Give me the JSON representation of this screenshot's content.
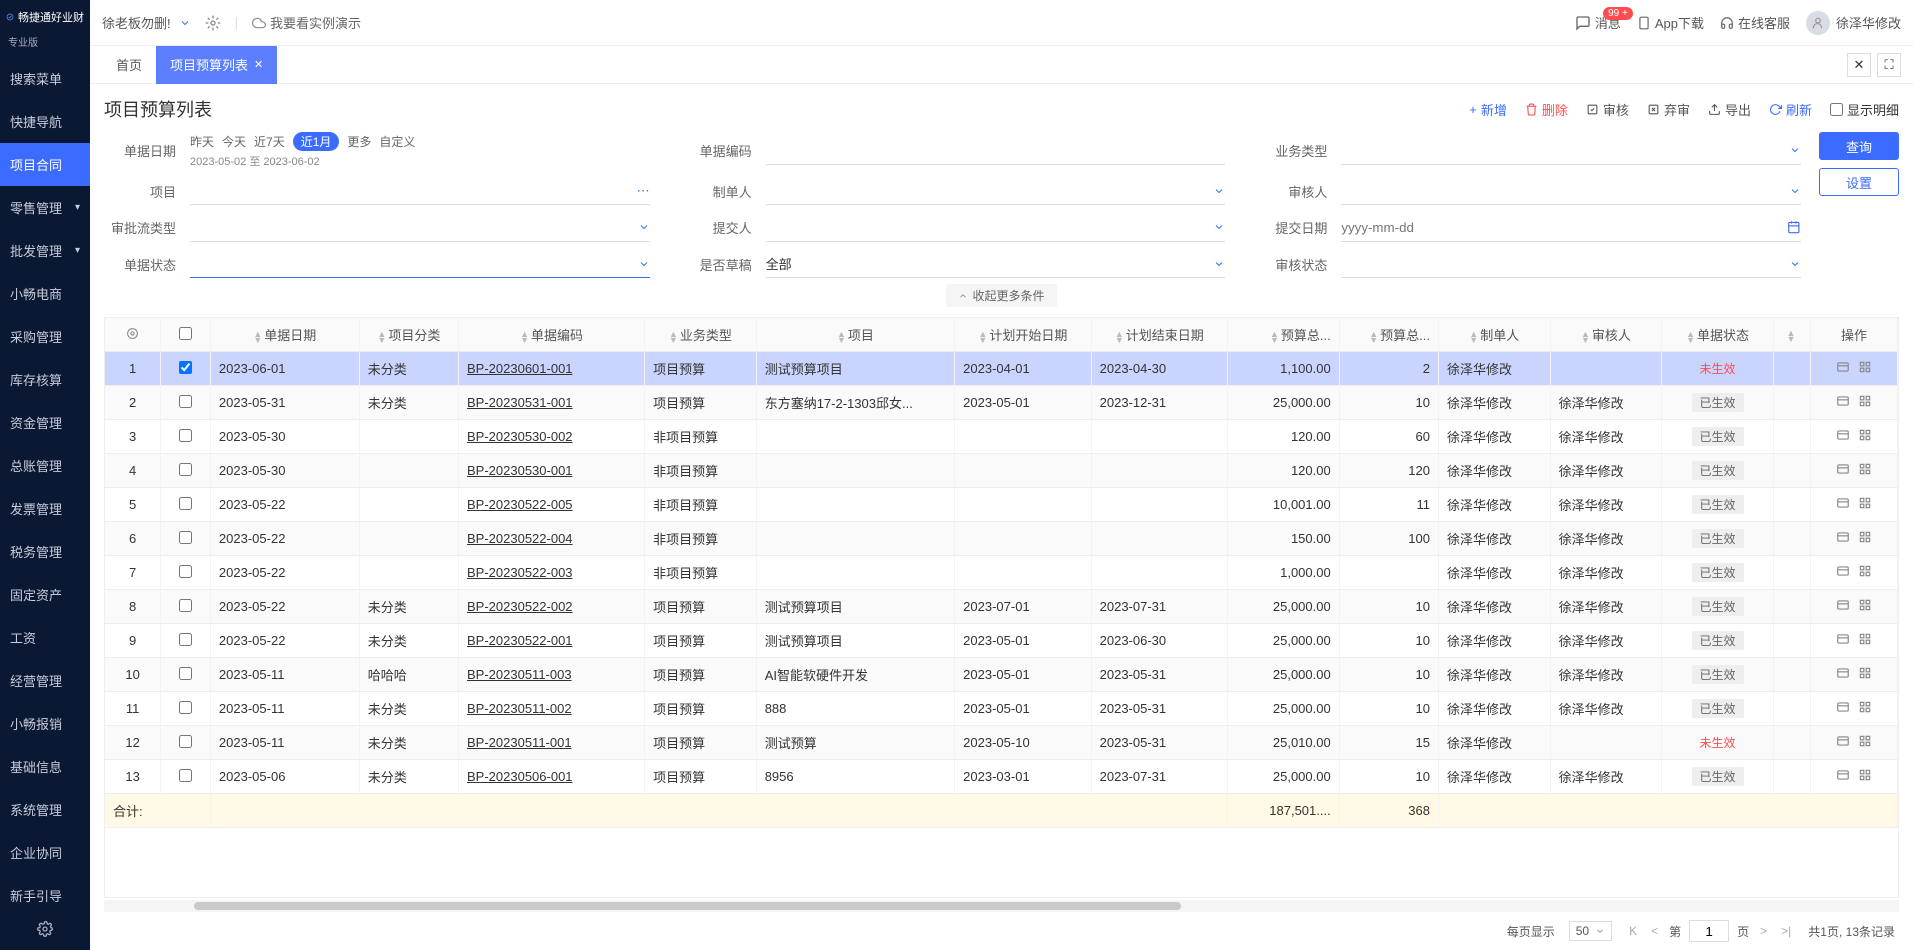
{
  "brand": {
    "name": "畅捷通好业财",
    "edition": "专业版"
  },
  "sidebar": {
    "items": [
      {
        "label": "搜索菜单"
      },
      {
        "label": "快捷导航"
      },
      {
        "label": "项目合同",
        "active": true
      },
      {
        "label": "零售管理",
        "hasSub": true
      },
      {
        "label": "批发管理",
        "hasSub": true
      },
      {
        "label": "小畅电商"
      },
      {
        "label": "采购管理"
      },
      {
        "label": "库存核算"
      },
      {
        "label": "资金管理"
      },
      {
        "label": "总账管理"
      },
      {
        "label": "发票管理"
      },
      {
        "label": "税务管理"
      },
      {
        "label": "固定资产"
      },
      {
        "label": "工资"
      },
      {
        "label": "经营管理"
      },
      {
        "label": "小畅报销"
      },
      {
        "label": "基础信息"
      },
      {
        "label": "系统管理"
      },
      {
        "label": "企业协同"
      },
      {
        "label": "新手引导"
      }
    ]
  },
  "topbar": {
    "company": "徐老板勿删!",
    "demo": "我要看实例演示",
    "msg": "消息",
    "badge": "99 +",
    "download": "App下载",
    "support": "在线客服",
    "user": "徐泽华修改"
  },
  "tabs": {
    "home": "首页",
    "active": "项目预算列表"
  },
  "page": {
    "title": "项目预算列表",
    "actions": {
      "add": "新增",
      "del": "删除",
      "audit": "审核",
      "abandon": "弃审",
      "export": "导出",
      "refresh": "刷新",
      "detail": "显示明细"
    }
  },
  "filters": {
    "docDate": {
      "label": "单据日期",
      "quicks": [
        "昨天",
        "今天",
        "近7天",
        "近1月",
        "更多",
        "自定义"
      ],
      "activeQuick": "近1月",
      "range": "2023-05-02 至 2023-06-02"
    },
    "docCode": {
      "label": "单据编码"
    },
    "bizType": {
      "label": "业务类型"
    },
    "project": {
      "label": "项目"
    },
    "maker": {
      "label": "制单人"
    },
    "auditor": {
      "label": "审核人"
    },
    "flowType": {
      "label": "审批流类型"
    },
    "submitter": {
      "label": "提交人"
    },
    "submitDate": {
      "label": "提交日期",
      "placeholder": "yyyy-mm-dd"
    },
    "docStatus": {
      "label": "单据状态"
    },
    "isDraft": {
      "label": "是否草稿",
      "value": "全部"
    },
    "auditStatus": {
      "label": "审核状态"
    },
    "query": "查询",
    "config": "设置",
    "collapse": "收起更多条件"
  },
  "table": {
    "headers": {
      "date": "单据日期",
      "category": "项目分类",
      "code": "单据编码",
      "bizType": "业务类型",
      "project": "项目",
      "start": "计划开始日期",
      "end": "计划结束日期",
      "amount": "预算总...",
      "count": "预算总...",
      "maker": "制单人",
      "auditor": "审核人",
      "status": "单据状态",
      "op": "操作"
    },
    "rows": [
      {
        "idx": 1,
        "sel": true,
        "date": "2023-06-01",
        "cat": "未分类",
        "code": "BP-20230601-001",
        "type": "项目预算",
        "proj": "测试预算项目",
        "start": "2023-04-01",
        "end": "2023-04-30",
        "amt": "1,100.00",
        "cnt": "2",
        "maker": "徐泽华修改",
        "aud": "",
        "status": "未生效",
        "stClass": "red"
      },
      {
        "idx": 2,
        "date": "2023-05-31",
        "cat": "未分类",
        "code": "BP-20230531-001",
        "type": "项目预算",
        "proj": "东方塞纳17-2-1303邱女...",
        "start": "2023-05-01",
        "end": "2023-12-31",
        "amt": "25,000.00",
        "cnt": "10",
        "maker": "徐泽华修改",
        "aud": "徐泽华修改",
        "status": "已生效",
        "stClass": "gray"
      },
      {
        "idx": 3,
        "date": "2023-05-30",
        "cat": "",
        "code": "BP-20230530-002",
        "type": "非项目预算",
        "proj": "",
        "start": "",
        "end": "",
        "amt": "120.00",
        "cnt": "60",
        "maker": "徐泽华修改",
        "aud": "徐泽华修改",
        "status": "已生效",
        "stClass": "gray"
      },
      {
        "idx": 4,
        "date": "2023-05-30",
        "cat": "",
        "code": "BP-20230530-001",
        "type": "非项目预算",
        "proj": "",
        "start": "",
        "end": "",
        "amt": "120.00",
        "cnt": "120",
        "maker": "徐泽华修改",
        "aud": "徐泽华修改",
        "status": "已生效",
        "stClass": "gray"
      },
      {
        "idx": 5,
        "date": "2023-05-22",
        "cat": "",
        "code": "BP-20230522-005",
        "type": "非项目预算",
        "proj": "",
        "start": "",
        "end": "",
        "amt": "10,001.00",
        "cnt": "11",
        "maker": "徐泽华修改",
        "aud": "徐泽华修改",
        "status": "已生效",
        "stClass": "gray"
      },
      {
        "idx": 6,
        "date": "2023-05-22",
        "cat": "",
        "code": "BP-20230522-004",
        "type": "非项目预算",
        "proj": "",
        "start": "",
        "end": "",
        "amt": "150.00",
        "cnt": "100",
        "maker": "徐泽华修改",
        "aud": "徐泽华修改",
        "status": "已生效",
        "stClass": "gray"
      },
      {
        "idx": 7,
        "date": "2023-05-22",
        "cat": "",
        "code": "BP-20230522-003",
        "type": "非项目预算",
        "proj": "",
        "start": "",
        "end": "",
        "amt": "1,000.00",
        "cnt": "",
        "maker": "徐泽华修改",
        "aud": "徐泽华修改",
        "status": "已生效",
        "stClass": "gray"
      },
      {
        "idx": 8,
        "date": "2023-05-22",
        "cat": "未分类",
        "code": "BP-20230522-002",
        "type": "项目预算",
        "proj": "测试预算项目",
        "start": "2023-07-01",
        "end": "2023-07-31",
        "amt": "25,000.00",
        "cnt": "10",
        "maker": "徐泽华修改",
        "aud": "徐泽华修改",
        "status": "已生效",
        "stClass": "gray"
      },
      {
        "idx": 9,
        "date": "2023-05-22",
        "cat": "未分类",
        "code": "BP-20230522-001",
        "type": "项目预算",
        "proj": "测试预算项目",
        "start": "2023-05-01",
        "end": "2023-06-30",
        "amt": "25,000.00",
        "cnt": "10",
        "maker": "徐泽华修改",
        "aud": "徐泽华修改",
        "status": "已生效",
        "stClass": "gray"
      },
      {
        "idx": 10,
        "date": "2023-05-11",
        "cat": "哈哈哈",
        "code": "BP-20230511-003",
        "type": "项目预算",
        "proj": "AI智能软硬件开发",
        "start": "2023-05-01",
        "end": "2023-05-31",
        "amt": "25,000.00",
        "cnt": "10",
        "maker": "徐泽华修改",
        "aud": "徐泽华修改",
        "status": "已生效",
        "stClass": "gray"
      },
      {
        "idx": 11,
        "date": "2023-05-11",
        "cat": "未分类",
        "code": "BP-20230511-002",
        "type": "项目预算",
        "proj": "888",
        "start": "2023-05-01",
        "end": "2023-05-31",
        "amt": "25,000.00",
        "cnt": "10",
        "maker": "徐泽华修改",
        "aud": "徐泽华修改",
        "status": "已生效",
        "stClass": "gray"
      },
      {
        "idx": 12,
        "date": "2023-05-11",
        "cat": "未分类",
        "code": "BP-20230511-001",
        "type": "项目预算",
        "proj": "测试预算",
        "start": "2023-05-10",
        "end": "2023-05-31",
        "amt": "25,010.00",
        "cnt": "15",
        "maker": "徐泽华修改",
        "aud": "",
        "status": "未生效",
        "stClass": "red"
      },
      {
        "idx": 13,
        "date": "2023-05-06",
        "cat": "未分类",
        "code": "BP-20230506-001",
        "type": "项目预算",
        "proj": "8956",
        "start": "2023-03-01",
        "end": "2023-07-31",
        "amt": "25,000.00",
        "cnt": "10",
        "maker": "徐泽华修改",
        "aud": "徐泽华修改",
        "status": "已生效",
        "stClass": "gray"
      }
    ],
    "footer": {
      "label": "合计:",
      "amt": "187,501....",
      "cnt": "368"
    }
  },
  "pagination": {
    "perPageLabel": "每页显示",
    "perPage": "50",
    "pagePrefix": "第",
    "pageSuffix": "页",
    "current": "1",
    "summary": "共1页, 13条记录"
  }
}
